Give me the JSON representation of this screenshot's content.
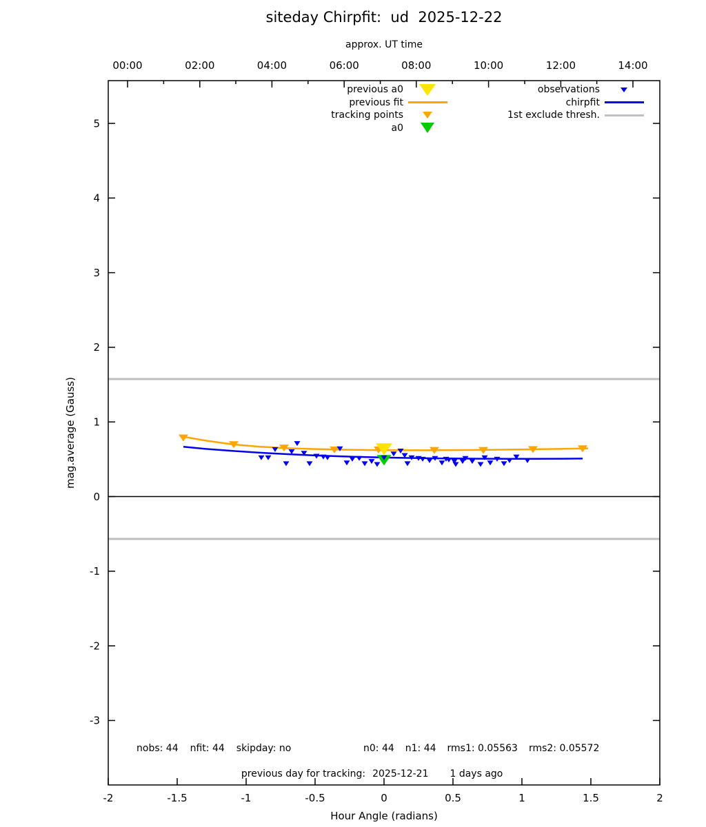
{
  "title": "siteday Chirpfit:  ud  2025-12-22",
  "axes": {
    "top_label": "approx. UT time",
    "y_label": "mag.average (Gauss)",
    "x_label": "Hour Angle (radians)"
  },
  "legend": {
    "previous_a0": "previous a0",
    "previous_fit": "previous fit",
    "tracking_points": "tracking points",
    "a0": "a0",
    "observations": "observations",
    "chirpfit": "chirpfit",
    "exclude_thresh": "1st exclude thresh."
  },
  "stats": {
    "left": [
      "nobs: 44",
      "nfit: 44",
      "skipday: no"
    ],
    "right": [
      "n0: 44",
      "n1: 44",
      "rms1: 0.05563",
      "rms2: 0.05572"
    ],
    "tracking_label": "previous day for tracking:",
    "tracking_date": "2025-12-21",
    "tracking_ago": "1 days ago"
  },
  "chart_data": {
    "type": "scatter",
    "title": "siteday Chirpfit:  ud  2025-12-22",
    "xlabel": "Hour Angle (radians)",
    "x2label": "approx. UT time",
    "ylabel": "mag.average (Gauss)",
    "xlim": [
      -2,
      2
    ],
    "ylim": [
      -3.864,
      5.573
    ],
    "grid": false,
    "x_tick_labels": [
      "-2",
      "-1.5",
      "-1",
      "-0.5",
      "0",
      "0.5",
      "1",
      "1.5",
      "2"
    ],
    "y_tick_labels": [
      "5",
      "4",
      "3",
      "2",
      "1",
      "0",
      "-1",
      "-2",
      "-3"
    ],
    "top_ticks": [
      {
        "label": "00:00",
        "ha": -1.86
      },
      {
        "label": "02:00",
        "ha": -1.336
      },
      {
        "label": "04:00",
        "ha": -0.813
      },
      {
        "label": "06:00",
        "ha": -0.289
      },
      {
        "label": "08:00",
        "ha": 0.234
      },
      {
        "label": "10:00",
        "ha": 0.758
      },
      {
        "label": "12:00",
        "ha": 1.282
      },
      {
        "label": "14:00",
        "ha": 1.805
      }
    ],
    "top_minor_ticks": [
      -1.598,
      -1.075,
      -0.551,
      -0.027,
      0.496,
      1.02,
      1.543
    ],
    "zero_line_y": 0,
    "exclude_thresholds": [
      1.575,
      -0.568
    ],
    "colors": {
      "observations": "#0000ee",
      "chirpfit": "#0000ee",
      "previous_fit": "#ffa500",
      "tracking_points": "#ffa500",
      "previous_a0": "#ffe400",
      "a0": "#00cc00",
      "exclude_thresh": "#bfbfbf",
      "zero_line": "#000000"
    },
    "series": {
      "observations": [
        [
          -0.89,
          0.52
        ],
        [
          -0.84,
          0.52
        ],
        [
          -0.79,
          0.63
        ],
        [
          -0.71,
          0.44
        ],
        [
          -0.67,
          0.6
        ],
        [
          -0.63,
          0.71
        ],
        [
          -0.58,
          0.58
        ],
        [
          -0.54,
          0.44
        ],
        [
          -0.49,
          0.54
        ],
        [
          -0.44,
          0.53
        ],
        [
          -0.41,
          0.52
        ],
        [
          -0.32,
          0.64
        ],
        [
          -0.27,
          0.45
        ],
        [
          -0.23,
          0.5
        ],
        [
          -0.18,
          0.51
        ],
        [
          -0.14,
          0.44
        ],
        [
          -0.09,
          0.47
        ],
        [
          -0.05,
          0.43
        ],
        [
          0.0,
          0.52
        ],
        [
          0.07,
          0.57
        ],
        [
          0.12,
          0.61
        ],
        [
          0.15,
          0.55
        ],
        [
          0.17,
          0.44
        ],
        [
          0.2,
          0.52
        ],
        [
          0.25,
          0.51
        ],
        [
          0.28,
          0.5
        ],
        [
          0.33,
          0.48
        ],
        [
          0.37,
          0.51
        ],
        [
          0.42,
          0.45
        ],
        [
          0.45,
          0.5
        ],
        [
          0.47,
          0.49
        ],
        [
          0.51,
          0.47
        ],
        [
          0.52,
          0.43
        ],
        [
          0.57,
          0.47
        ],
        [
          0.59,
          0.51
        ],
        [
          0.64,
          0.47
        ],
        [
          0.7,
          0.43
        ],
        [
          0.73,
          0.52
        ],
        [
          0.77,
          0.45
        ],
        [
          0.82,
          0.5
        ],
        [
          0.87,
          0.44
        ],
        [
          0.91,
          0.48
        ],
        [
          0.96,
          0.53
        ],
        [
          1.04,
          0.48
        ]
      ],
      "tracking_points": [
        [
          -1.455,
          0.785
        ],
        [
          -1.09,
          0.695
        ],
        [
          -0.725,
          0.65
        ],
        [
          -0.36,
          0.625
        ],
        [
          -0.04,
          0.625
        ],
        [
          0.365,
          0.618
        ],
        [
          0.72,
          0.618
        ],
        [
          1.08,
          0.63
        ],
        [
          1.44,
          0.64
        ]
      ],
      "previous_a0": [
        0.0,
        0.635
      ],
      "a0": [
        0.0,
        0.488
      ],
      "previous_fit_curve": [
        [
          -1.48,
          0.81
        ],
        [
          -1.3,
          0.752
        ],
        [
          -1.1,
          0.7
        ],
        [
          -0.9,
          0.668
        ],
        [
          -0.7,
          0.648
        ],
        [
          -0.5,
          0.636
        ],
        [
          -0.3,
          0.628
        ],
        [
          -0.1,
          0.624
        ],
        [
          0.1,
          0.621
        ],
        [
          0.3,
          0.62
        ],
        [
          0.5,
          0.622
        ],
        [
          0.7,
          0.625
        ],
        [
          0.9,
          0.629
        ],
        [
          1.1,
          0.634
        ],
        [
          1.3,
          0.64
        ],
        [
          1.48,
          0.646
        ]
      ],
      "chirpfit_curve": [
        [
          -1.455,
          0.668
        ],
        [
          -1.3,
          0.64
        ],
        [
          -1.1,
          0.612
        ],
        [
          -0.9,
          0.588
        ],
        [
          -0.7,
          0.568
        ],
        [
          -0.5,
          0.551
        ],
        [
          -0.3,
          0.538
        ],
        [
          -0.1,
          0.528
        ],
        [
          0.1,
          0.52
        ],
        [
          0.3,
          0.514
        ],
        [
          0.5,
          0.51
        ],
        [
          0.7,
          0.507
        ],
        [
          0.9,
          0.506
        ],
        [
          1.1,
          0.506
        ],
        [
          1.3,
          0.507
        ],
        [
          1.44,
          0.509
        ]
      ]
    }
  }
}
